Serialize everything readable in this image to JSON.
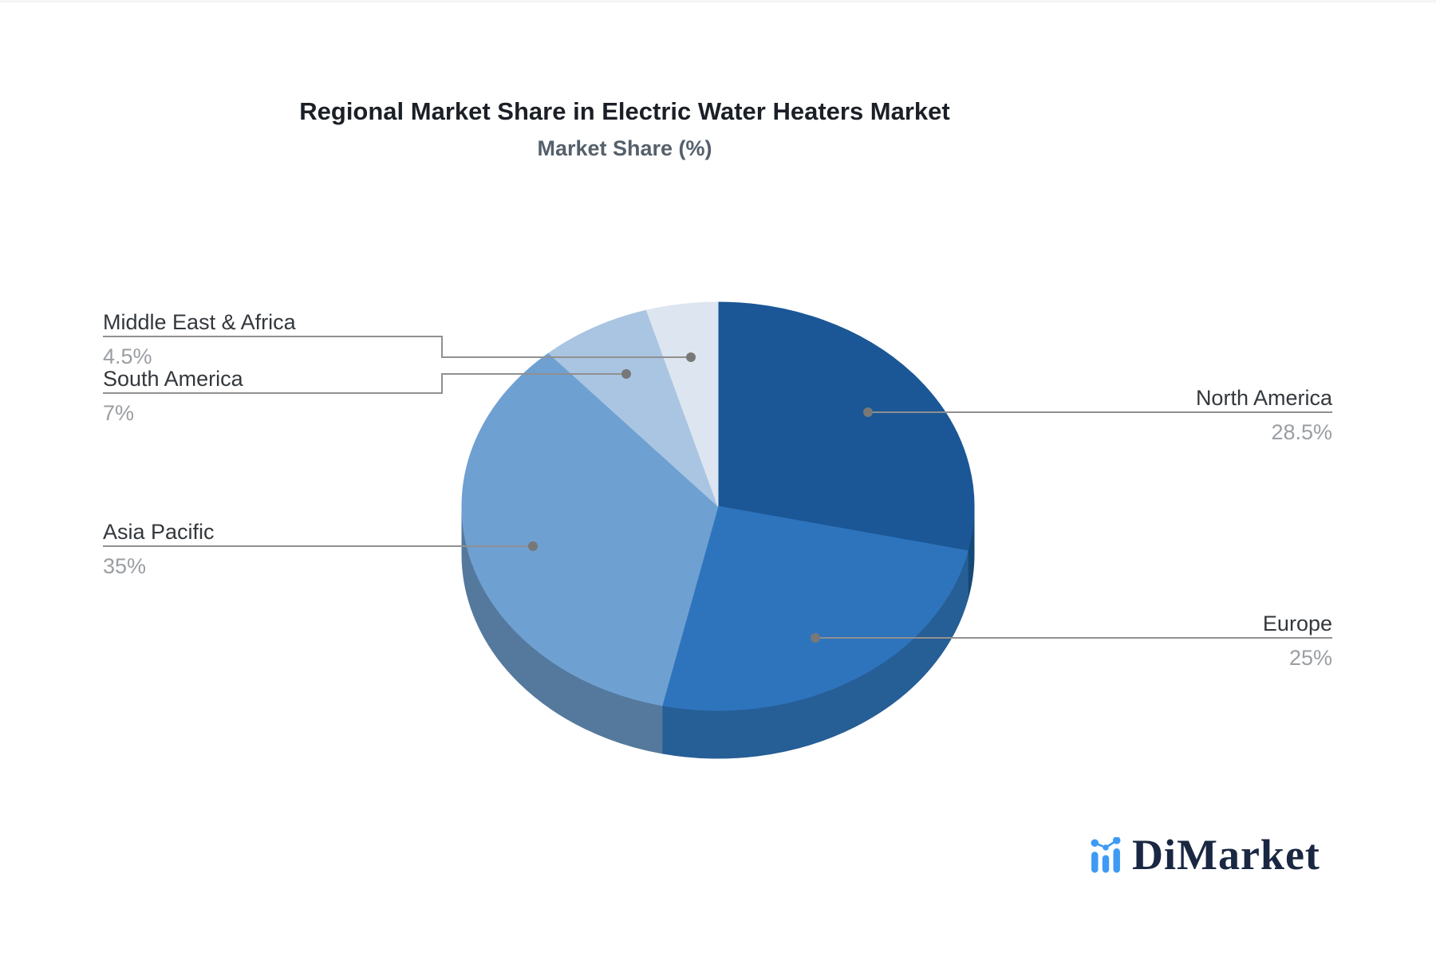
{
  "title": "Regional Market Share in Electric Water Heaters Market",
  "subtitle": "Market Share (%)",
  "logo": {
    "text": "DiMarket"
  },
  "chart_data": {
    "type": "pie",
    "title": "Regional Market Share in Electric Water Heaters Market",
    "subtitle": "Market Share (%)",
    "unit": "%",
    "effect": "3d",
    "direction": "clockwise",
    "start_angle_deg": 0,
    "legend_position": "callout-labels",
    "labels": [
      "North America",
      "Europe",
      "Asia Pacific",
      "South America",
      "Middle East & Africa"
    ],
    "values": [
      28.5,
      25,
      35,
      7,
      4.5
    ],
    "display_values": [
      "28.5%",
      "25%",
      "35%",
      "7%",
      "4.5%"
    ],
    "colors": [
      "#1B5796",
      "#2E74BD",
      "#6FA0D2",
      "#A9C5E2",
      "#DDE5F0"
    ],
    "side_colors": [
      "#164876",
      "#265E96",
      "#55799D",
      "#89A7C7",
      "#B9C5D6"
    ],
    "callout_line_color": "#909090",
    "callout_dot_color": "#787878"
  }
}
